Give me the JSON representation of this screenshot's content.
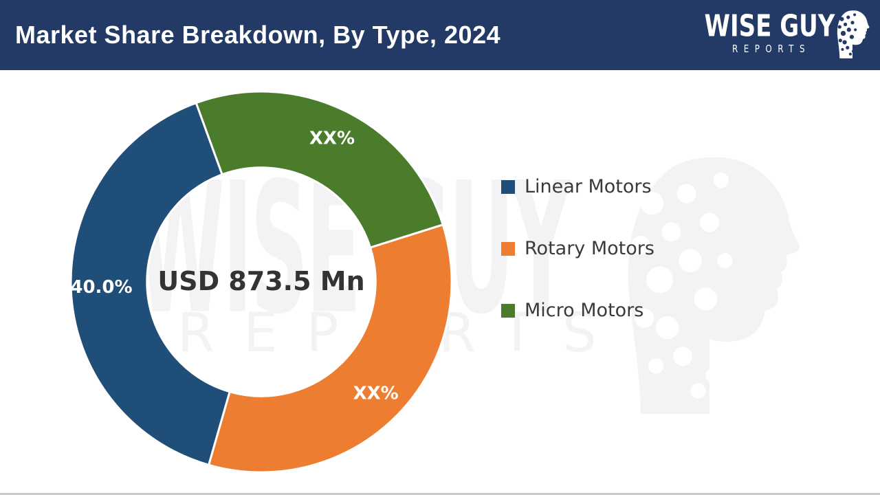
{
  "header": {
    "title": "Market Share Breakdown, By Type, 2024"
  },
  "logo": {
    "brand_top": "WISE GUY",
    "brand_bottom": "REPORTS",
    "icon": "head-profile-icon"
  },
  "watermark": {
    "brand_top": "WISE GUY",
    "brand_bottom": "REPORTS",
    "icon": "head-profile-icon"
  },
  "chart_data": {
    "type": "pie",
    "subtype": "donut",
    "title": "Market Share Breakdown, By Type, 2024",
    "center_label": "USD 873.5 Mn",
    "series": [
      {
        "name": "Linear Motors",
        "value": 40.0,
        "display_label": "40.0%",
        "color": "#1F4E78"
      },
      {
        "name": "Rotary Motors",
        "value": 34.3,
        "display_label": "XX%",
        "color": "#ED7D31"
      },
      {
        "name": "Micro Motors",
        "value": 25.7,
        "display_label": "XX%",
        "color": "#4A7C2B"
      }
    ],
    "start_angle_deg": 110,
    "counterclockwise": true,
    "donut_hole_ratio": 0.6,
    "slice_label_radius_ratio": 0.84,
    "slice_label_color": "#FFFFFF",
    "legend_position": "right"
  },
  "colors": {
    "header_bg": "#223A65",
    "page_bg": "#FFFFFF",
    "watermark": "#F3F3F6",
    "center_text": "#333333",
    "legend_text": "#3A3A3A",
    "bottom_rule": "#C7CBCF"
  }
}
